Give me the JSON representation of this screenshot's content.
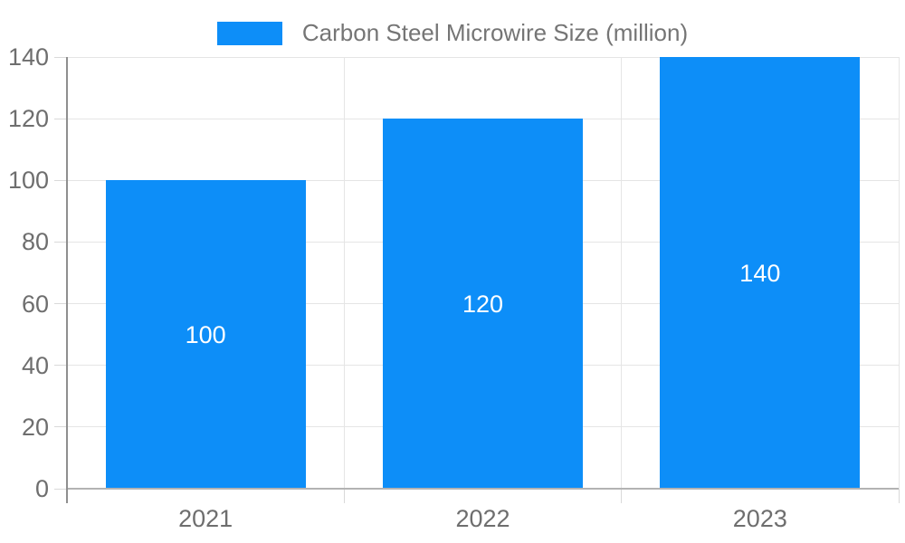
{
  "chart_data": {
    "type": "bar",
    "title": "",
    "categories": [
      "2021",
      "2022",
      "2023"
    ],
    "series": [
      {
        "name": "Carbon Steel Microwire Size (million)",
        "values": [
          100,
          120,
          140
        ],
        "color": "#0d8ef8"
      }
    ],
    "xlabel": "",
    "ylabel": "",
    "ylim": [
      0,
      140
    ],
    "yticks": [
      0,
      20,
      40,
      60,
      80,
      100,
      120,
      140
    ],
    "grid": true,
    "legend_position": "top",
    "data_labels_visible": true
  },
  "colors": {
    "bar": "#0d8ef8",
    "grid_line": "#e5e5e5",
    "zero_line": "#b3b3b3",
    "axis_line": "#8f8f8f",
    "tick_mark": "#d9d9d9",
    "axis_text": "#6e6e6e",
    "legend_text": "#757575",
    "bar_label_text": "#ffffff",
    "background": "#ffffff"
  }
}
